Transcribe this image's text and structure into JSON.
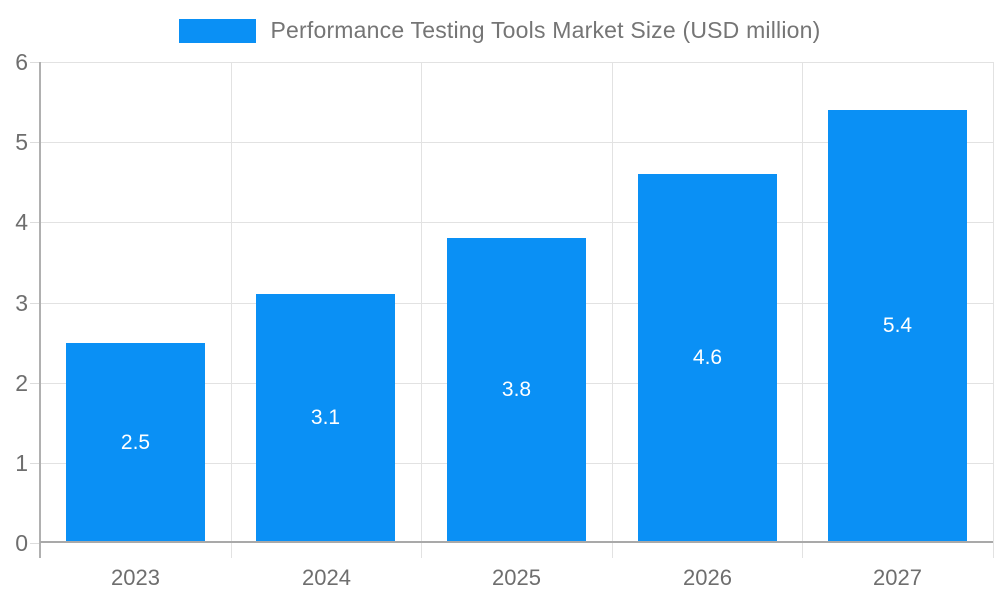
{
  "chart_data": {
    "type": "bar",
    "title": "Performance Testing Tools Market Size (USD million)",
    "legend_entries": [
      "Performance Testing Tools Market Size (USD million)"
    ],
    "legend_position": "top",
    "categories": [
      "2023",
      "2024",
      "2025",
      "2026",
      "2027"
    ],
    "values": [
      2.5,
      3.1,
      3.8,
      4.6,
      5.4
    ],
    "value_labels": [
      "2.5",
      "3.1",
      "3.8",
      "4.6",
      "5.4"
    ],
    "xlabel": "",
    "ylabel": "",
    "ylim": [
      0,
      6
    ],
    "yticks": [
      0,
      1,
      2,
      3,
      4,
      5,
      6
    ],
    "grid": true,
    "bar_color": "#0a90f5",
    "value_label_color": "#ffffff"
  },
  "colors": {
    "background": "#ffffff",
    "title_text": "#757575",
    "axis_text": "#6e6e6e",
    "gridline": "#e2e2e2",
    "y_axis_line": "#b0b0b0",
    "x_axis_line": "#a9a9a9"
  }
}
